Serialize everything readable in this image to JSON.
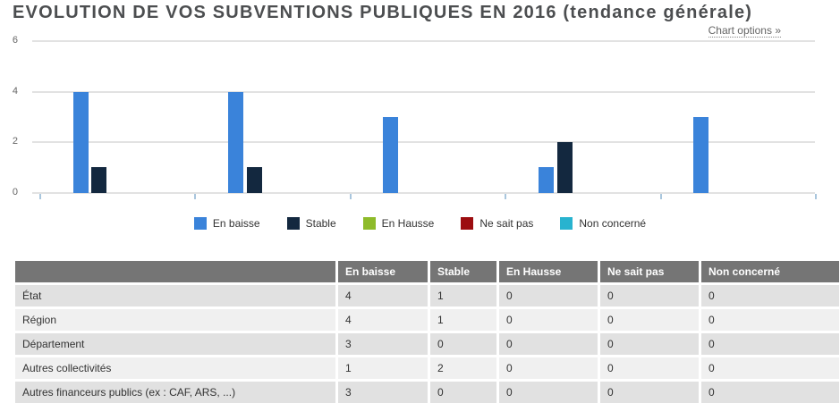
{
  "header": {
    "title": "EVOLUTION DE VOS SUBVENTIONS PUBLIQUES EN 2016 (tendance générale)",
    "chart_options_label": "Chart options »"
  },
  "chart_data": {
    "type": "bar",
    "title": "EVOLUTION DE VOS SUBVENTIONS PUBLIQUES EN 2016 (tendance générale)",
    "categories": [
      "État",
      "Région",
      "Département",
      "Autres collectivités",
      "Autres financeurs publics (ex : CAF, ARS, ...)"
    ],
    "series": [
      {
        "name": "En baisse",
        "color": "#3a83da",
        "values": [
          4,
          4,
          3,
          1,
          3
        ]
      },
      {
        "name": "Stable",
        "color": "#13283f",
        "values": [
          1,
          1,
          0,
          2,
          0
        ]
      },
      {
        "name": "En Hausse",
        "color": "#8ebb2a",
        "values": [
          0,
          0,
          0,
          0,
          0
        ]
      },
      {
        "name": "Ne sait pas",
        "color": "#9c0d10",
        "values": [
          0,
          0,
          0,
          0,
          0
        ]
      },
      {
        "name": "Non concerné",
        "color": "#28b3cf",
        "values": [
          0,
          0,
          0,
          0,
          0
        ]
      }
    ],
    "xlabel": "",
    "ylabel": "",
    "ylim": [
      0,
      6
    ],
    "yticks": [
      0,
      2,
      4,
      6
    ],
    "grid": true,
    "legend_position": "bottom",
    "x_tick_labels_visible": false
  },
  "table": {
    "columns": [
      "",
      "En baisse",
      "Stable",
      "En Hausse",
      "Ne sait pas",
      "Non concerné"
    ],
    "rows": [
      {
        "label": "État",
        "values": [
          4,
          1,
          0,
          0,
          0
        ]
      },
      {
        "label": "Région",
        "values": [
          4,
          1,
          0,
          0,
          0
        ]
      },
      {
        "label": "Département",
        "values": [
          3,
          0,
          0,
          0,
          0
        ]
      },
      {
        "label": "Autres collectivités",
        "values": [
          1,
          2,
          0,
          0,
          0
        ]
      },
      {
        "label": "Autres financeurs publics (ex : CAF, ARS, ...)",
        "values": [
          3,
          0,
          0,
          0,
          0
        ]
      }
    ]
  },
  "colors": {
    "title_text": "#4c4e50",
    "link_text": "#666666",
    "gridline": "#e2e2e2",
    "axis_label": "#666666",
    "axis_tick": "#a9c6dd",
    "table_header_bg": "#757575",
    "table_header_text": "#ffffff",
    "row_odd_bg": "#e1e1e1",
    "row_even_bg": "#f0f0f0",
    "cell_text": "#333333"
  }
}
